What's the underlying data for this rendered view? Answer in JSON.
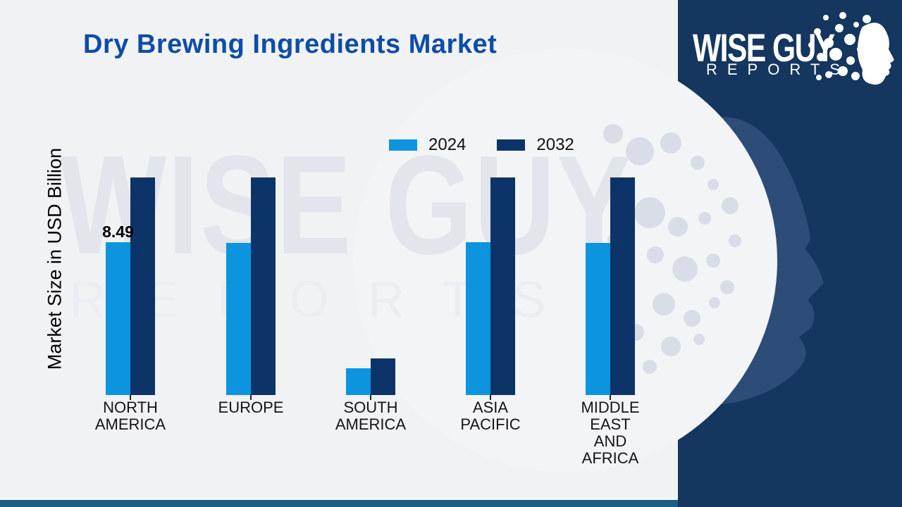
{
  "page": {
    "title": "Dry Brewing Ingredients Market",
    "brand": {
      "name": "WISE GUY",
      "sub": "REPORTS"
    },
    "watermark": {
      "line1": "WISE GUY",
      "line2": "REPORTS"
    }
  },
  "colors": {
    "background": "#f1f2f4",
    "title_blue": "#0d4da5",
    "bar_2024_blue": "#0d94df",
    "bar_2032_navy": "#0d3468",
    "right_panel_navy": "#14365f",
    "face_silhouette_navy": "#2d4c77",
    "watermark_gray": "#e2e5eb",
    "dots_gray": "#d9dde8",
    "bottom_bar_teal": "#1d5e83",
    "logo_white": "#ffffff"
  },
  "chart_data": {
    "type": "bar",
    "title": "Dry Brewing Ingredients Market",
    "xlabel": "",
    "ylabel": "Market Size in USD Billion",
    "categories": [
      "NORTH AMERICA",
      "EUROPE",
      "SOUTH AMERICA",
      "ASIA PACIFIC",
      "MIDDLE EAST AND AFRICA"
    ],
    "series": [
      {
        "name": "2024",
        "color": "#0d94df",
        "values": [
          8.49,
          8.47,
          1.5,
          8.48,
          8.47
        ]
      },
      {
        "name": "2032",
        "color": "#0d3468",
        "values": [
          12.1,
          12.1,
          2.03,
          12.1,
          12.1
        ]
      }
    ],
    "annotations": [
      {
        "category": "NORTH AMERICA",
        "series": "2024",
        "text": "8.49"
      }
    ],
    "ylim": [
      0,
      13
    ],
    "grid": false,
    "legend_position": "top-center"
  }
}
